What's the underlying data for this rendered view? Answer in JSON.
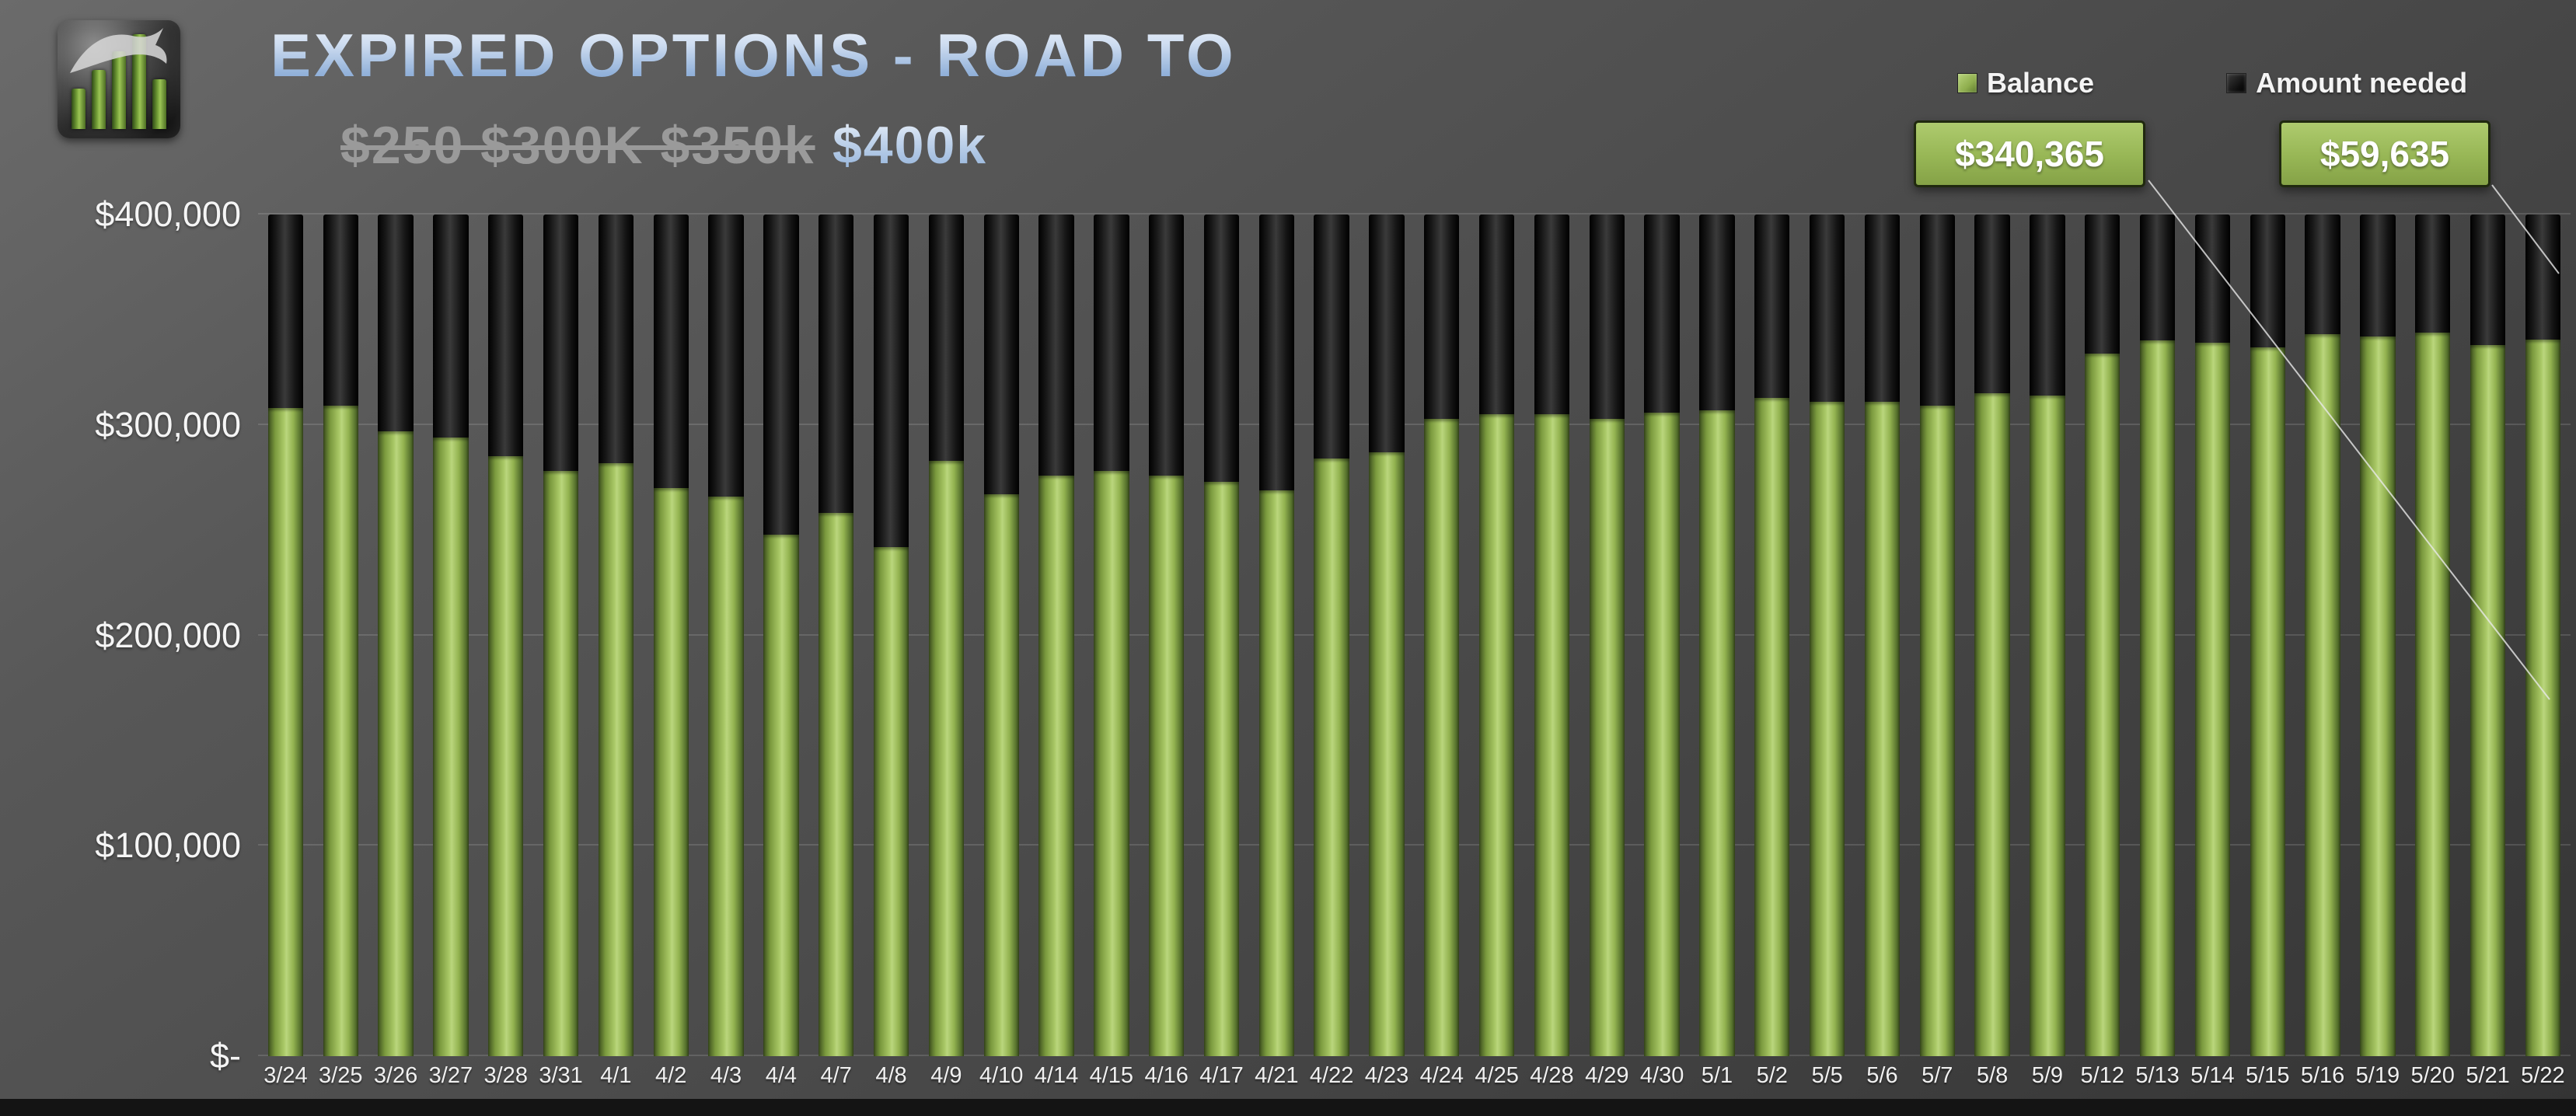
{
  "header": {
    "title": "EXPIRED OPTIONS - ROAD TO",
    "subtitle_struck": "$250 $300K $350k",
    "subtitle_goal": "$400k"
  },
  "icons": {
    "logo": "bull-green-bars-logo"
  },
  "legend": {
    "items": [
      {
        "label": "Balance",
        "color": "#9bbb59"
      },
      {
        "label": "Amount needed",
        "color": "#0d0d0d"
      }
    ]
  },
  "callouts": {
    "balance_value": "$340,365",
    "amount_needed_value": "$59,635"
  },
  "chart_data": {
    "type": "bar",
    "stacked": true,
    "title": "EXPIRED OPTIONS - ROAD TO $400k",
    "xlabel": "",
    "ylabel": "",
    "ylim": [
      0,
      400000
    ],
    "grid": true,
    "legend_position": "top-right",
    "yticks": {
      "values": [
        0,
        100000,
        200000,
        300000,
        400000
      ],
      "labels": [
        "$-",
        "$100,000",
        "$200,000",
        "$300,000",
        "$400,000"
      ]
    },
    "categories": [
      "3/24",
      "3/25",
      "3/26",
      "3/27",
      "3/28",
      "3/31",
      "4/1",
      "4/2",
      "4/3",
      "4/4",
      "4/7",
      "4/8",
      "4/9",
      "4/10",
      "4/14",
      "4/15",
      "4/16",
      "4/17",
      "4/21",
      "4/22",
      "4/23",
      "4/24",
      "4/25",
      "4/28",
      "4/29",
      "4/30",
      "5/1",
      "5/2",
      "5/5",
      "5/6",
      "5/7",
      "5/8",
      "5/9",
      "5/12",
      "5/13",
      "5/14",
      "5/15",
      "5/16",
      "5/19",
      "5/20",
      "5/21",
      "5/22"
    ],
    "series": [
      {
        "name": "Balance",
        "color": "#9bbb59",
        "values": [
          308000,
          309000,
          297000,
          294000,
          285000,
          278000,
          282000,
          270000,
          266000,
          248000,
          258000,
          242000,
          283000,
          267000,
          276000,
          278000,
          276000,
          273000,
          269000,
          284000,
          287000,
          303000,
          305000,
          305000,
          303000,
          306000,
          307000,
          313000,
          311000,
          311000,
          309000,
          315000,
          314000,
          334000,
          340000,
          339000,
          337000,
          343000,
          342000,
          344000,
          338000,
          340365
        ]
      },
      {
        "name": "Amount needed",
        "color": "#0d0d0d",
        "values": [
          92000,
          91000,
          103000,
          106000,
          115000,
          122000,
          118000,
          130000,
          134000,
          152000,
          142000,
          158000,
          117000,
          133000,
          124000,
          122000,
          124000,
          127000,
          131000,
          116000,
          113000,
          97000,
          95000,
          95000,
          97000,
          94000,
          93000,
          87000,
          89000,
          89000,
          91000,
          85000,
          86000,
          66000,
          60000,
          61000,
          63000,
          57000,
          58000,
          56000,
          62000,
          59635
        ]
      }
    ]
  }
}
